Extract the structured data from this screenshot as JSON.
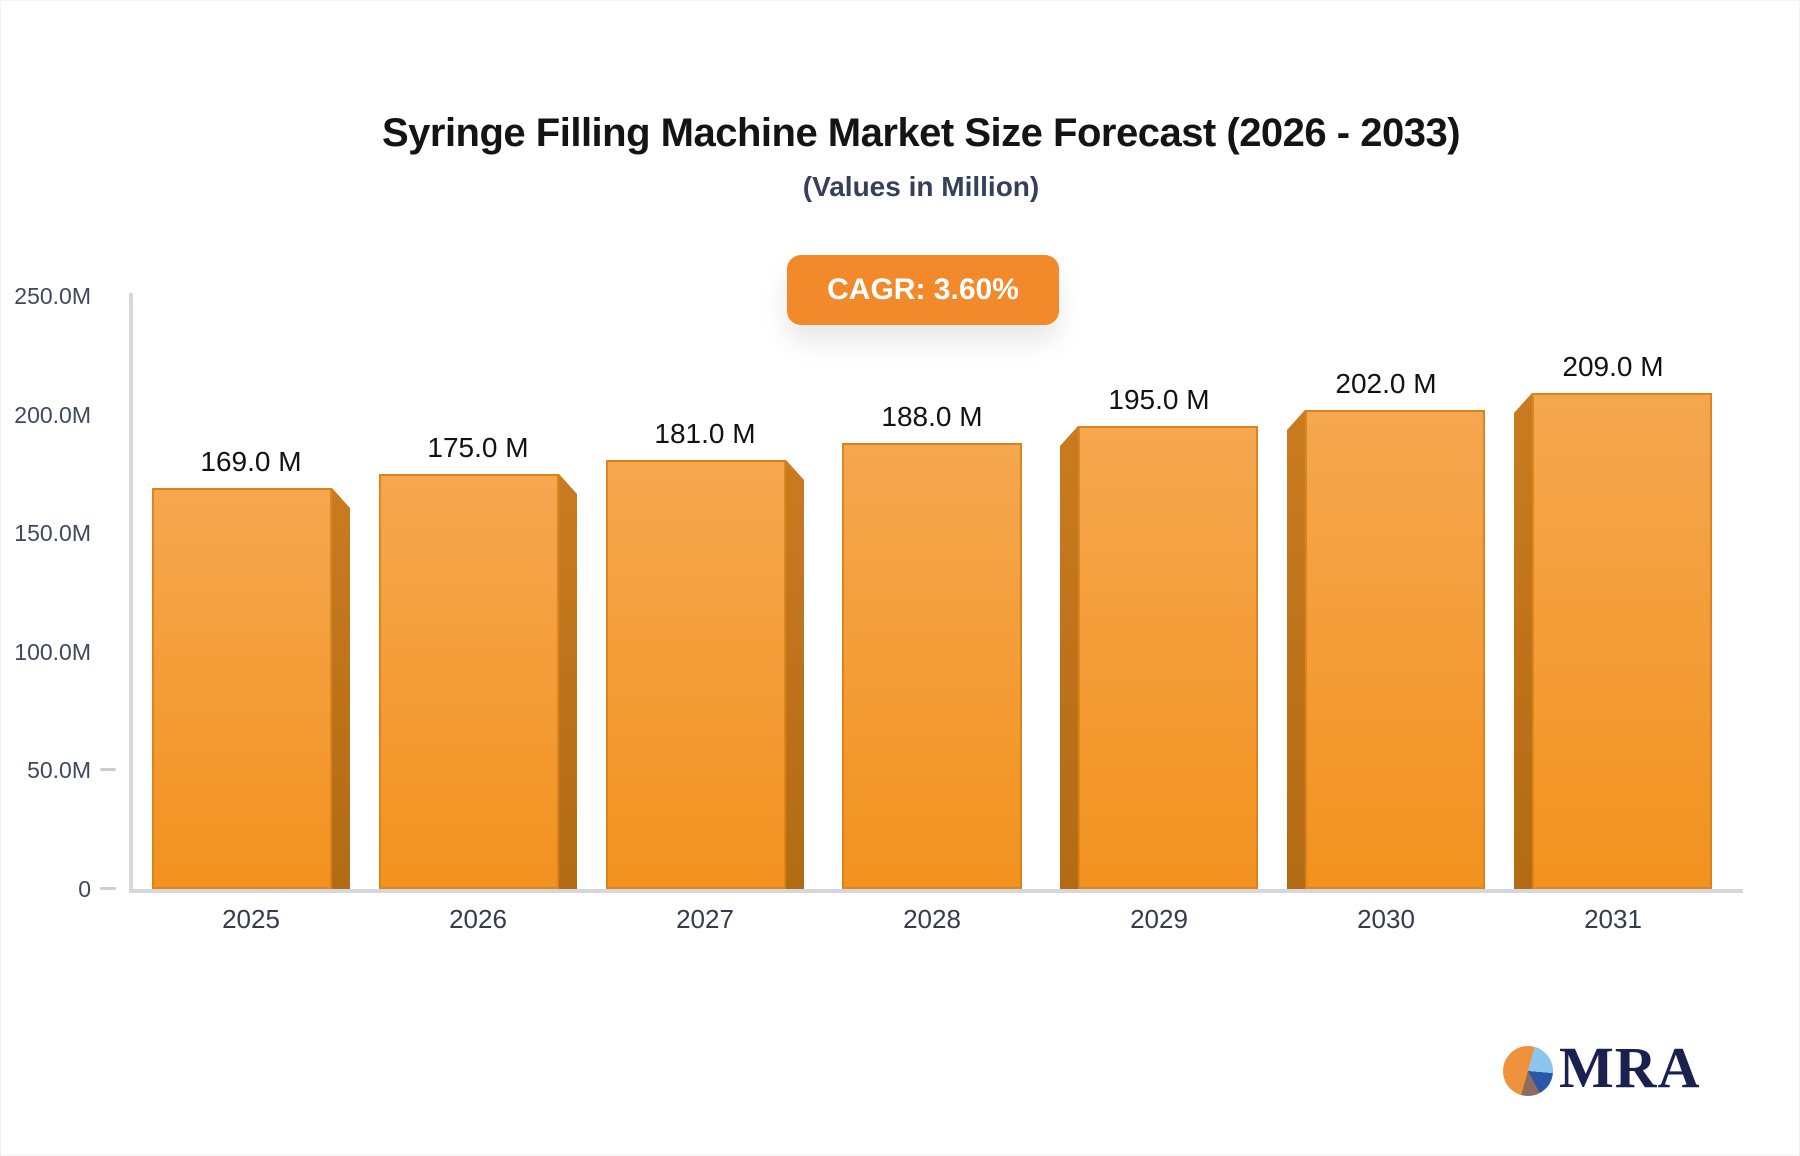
{
  "chart_data": {
    "type": "bar",
    "title": "Syringe Filling Machine Market Size Forecast (2026 - 2033)",
    "subtitle": "(Values in Million)",
    "categories": [
      "2025",
      "2026",
      "2027",
      "2028",
      "2029",
      "2030",
      "2031"
    ],
    "values": [
      169,
      175,
      181,
      188,
      195,
      202,
      209
    ],
    "value_labels": [
      "169.0 M",
      "175.0 M",
      "181.0 M",
      "188.0 M",
      "195.0 M",
      "202.0 M",
      "209.0 M"
    ],
    "unit": "Million",
    "xlabel": "",
    "ylabel": "",
    "ylim": [
      0,
      250
    ],
    "y_ticks": [
      {
        "label": "250.0M",
        "value": 250,
        "dash": false
      },
      {
        "label": "200.0M",
        "value": 200,
        "dash": false
      },
      {
        "label": "150.0M",
        "value": 150,
        "dash": false
      },
      {
        "label": "100.0M",
        "value": 100,
        "dash": false
      },
      {
        "label": "50.0M",
        "value": 50,
        "dash": true
      },
      {
        "label": "0",
        "value": 0,
        "dash": true
      }
    ],
    "grid": false,
    "legend": "none",
    "annotations": [
      "CAGR: 3.60%"
    ]
  },
  "colors": {
    "badge_bg": "#F28A2C",
    "bar_face_top": "#F5A74F",
    "bar_face_bottom": "#F2921F",
    "bar_side_top": "#CA7B20",
    "bar_side_bottom": "#B26B14",
    "axis_line": "#D6D8DE",
    "title_text": "#141414",
    "subtitle_text": "#35415A",
    "logo_navy": "#1A2150",
    "pie_slices": [
      "#F0913B",
      "#8CC5EE",
      "#2B57A8",
      "#8D6B5E"
    ]
  },
  "logo": {
    "text": "MRA"
  }
}
